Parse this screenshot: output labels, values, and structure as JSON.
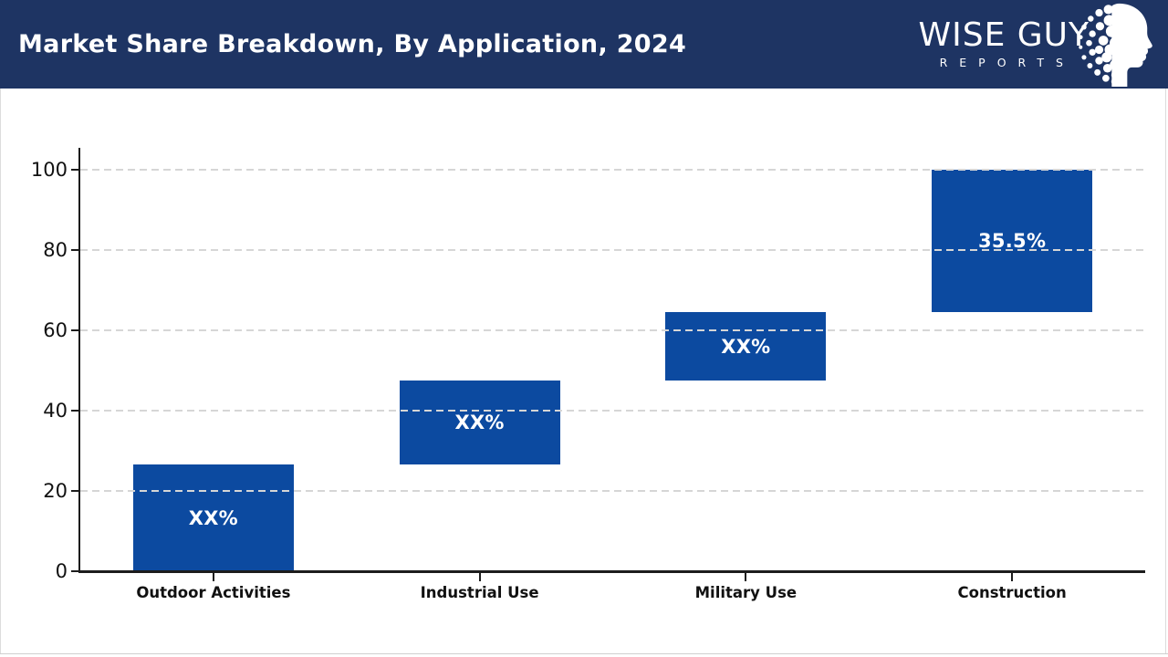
{
  "header": {
    "title": "Market Share Breakdown, By Application, 2024",
    "bg_color": "#1e3463",
    "logo": {
      "line1": "WISE GUY",
      "line2": "REPORTS"
    }
  },
  "watermark": {
    "line1": "WISE GUY",
    "line2": "REPORTS"
  },
  "chart_data": {
    "type": "bar",
    "subtype": "waterfall-floating-bars",
    "title": "Market Share Breakdown, By Application, 2024",
    "xlabel": "",
    "ylabel": "",
    "categories": [
      "Outdoor Activities",
      "Industrial Use",
      "Military Use",
      "Construction"
    ],
    "series": [
      {
        "name": "Market Share (%)",
        "segments": [
          [
            0,
            26.5
          ],
          [
            26.5,
            47.5
          ],
          [
            47.5,
            64.5
          ],
          [
            64.5,
            100
          ]
        ]
      }
    ],
    "bar_labels": [
      "XX%",
      "XX%",
      "XX%",
      "35.5%"
    ],
    "ylim": [
      0,
      100
    ],
    "yticks": [
      0,
      20,
      40,
      60,
      80,
      100
    ],
    "grid": "horizontal dashed, drawn above bars",
    "legend": "none",
    "bar_color": "#0c4aa0",
    "bar_label_color": "#ffffff",
    "axis_color": "#1c1c1c",
    "gridline_color": "#d6d6d6"
  }
}
